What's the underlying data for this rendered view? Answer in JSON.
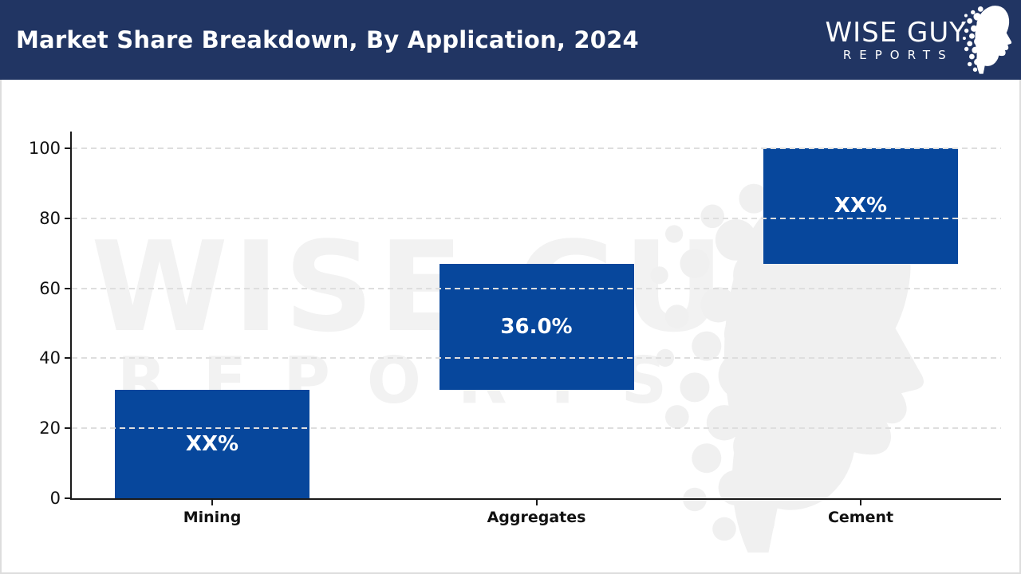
{
  "header": {
    "title": "Market Share Breakdown, By Application, 2024",
    "brand": {
      "line1": "WISE GUY",
      "line2": "REPORTS"
    }
  },
  "watermark": {
    "line1": "WISE GUY",
    "line2": "REPORTS"
  },
  "colors": {
    "header_bg": "#213563",
    "bar": "#07479C",
    "grid": "#dedede",
    "axis": "#1a1a1a",
    "bar_label_text": "#ffffff",
    "watermark_text": "#f2f2f2"
  },
  "chart_data": {
    "type": "bar",
    "subtype": "waterfall",
    "title": "Market Share Breakdown, By Application, 2024",
    "categories": [
      "Mining",
      "Aggregates",
      "Cement"
    ],
    "segments": [
      {
        "category": "Mining",
        "start": 0,
        "end": 31,
        "label": "XX%"
      },
      {
        "category": "Aggregates",
        "start": 31,
        "end": 67,
        "label": "36.0%"
      },
      {
        "category": "Cement",
        "start": 67,
        "end": 100,
        "label": "XX%"
      }
    ],
    "y_ticks": [
      0,
      20,
      40,
      60,
      80,
      100
    ],
    "ylim": [
      0,
      104.8
    ],
    "xlabel": "",
    "ylabel": "",
    "grid": "dashed-horizontal",
    "legend": "none"
  }
}
